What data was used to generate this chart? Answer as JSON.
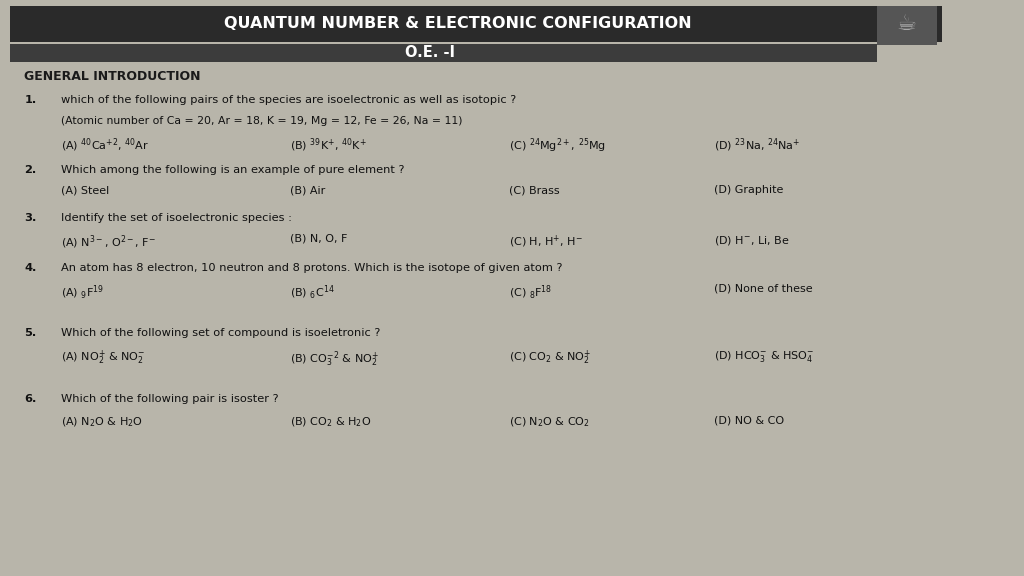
{
  "title": "QUANTUM NUMBER & ELECTRONIC CONFIGURATION",
  "subtitle": "O.E. -I",
  "page_bg": "#b8b5aa",
  "paper_bg": "#d8d6ce",
  "header_bg": "#2a2a2a",
  "subheader_bg": "#3a3a3a",
  "text_color": "#1a1a1a",
  "white_text": "#ffffff",
  "section_title": "GENERAL INTRODUCTION",
  "q1_num": "1.",
  "q1_text": "which of the following pairs of the species are isoelectronic as well as isotopic ?",
  "q1_sub": "(Atomic number of Ca = 20, Ar = 18, K = 19, Mg = 12, Fe = 26, Na = 11)",
  "q1_opts": [
    "(A) $^{40}$Ca$^{+2}$, $^{40}$Ar",
    "(B) $^{39}$K$^{+}$, $^{40}$K$^{+}$",
    "(C) $^{24}$Mg$^{2+}$, $^{25}$Mg",
    "(D) $^{23}$Na, $^{24}$Na$^{+}$"
  ],
  "q2_num": "2.",
  "q2_text": "Which among the following is an example of pure element ?",
  "q2_opts": [
    "(A) Steel",
    "(B) Air",
    "(C) Brass",
    "(D) Graphite"
  ],
  "q3_num": "3.",
  "q3_text": "Identify the set of isoelectronic species :",
  "q3_opts": [
    "(A) N$^{3-}$, O$^{2-}$, F$^{-}$",
    "(B) N, O, F",
    "(C) H, H$^{+}$, H$^{-}$",
    "(D) H$^{-}$, Li, Be"
  ],
  "q4_num": "4.",
  "q4_text": "An atom has 8 electron, 10 neutron and 8 protons. Which is the isotope of given atom ?",
  "q4_opts": [
    "(A) $_{9}$F$^{19}$",
    "(B) $_{6}$C$^{14}$",
    "(C) $_{8}$F$^{18}$",
    "(D) None of these"
  ],
  "q5_num": "5.",
  "q5_text": "Which of the following set of compound is isoeletronic ?",
  "q5_opts": [
    "(A) NO$_2^{+}$ & NO$_2^{-}$",
    "(B) CO$_3^{-2}$ & NO$_2^{+}$",
    "(C) CO$_2$ & NO$_2^{+}$",
    "(D) HCO$_3^{-}$ & HSO$_4^{-}$"
  ],
  "q6_num": "6.",
  "q6_text": "Which of the following pair is isoster ?",
  "q6_opts": [
    "(A) N$_2$O & H$_2$O",
    "(B) CO$_2$ & H$_2$O",
    "(C) N$_2$O & CO$_2$",
    "(D) NO & CO"
  ]
}
